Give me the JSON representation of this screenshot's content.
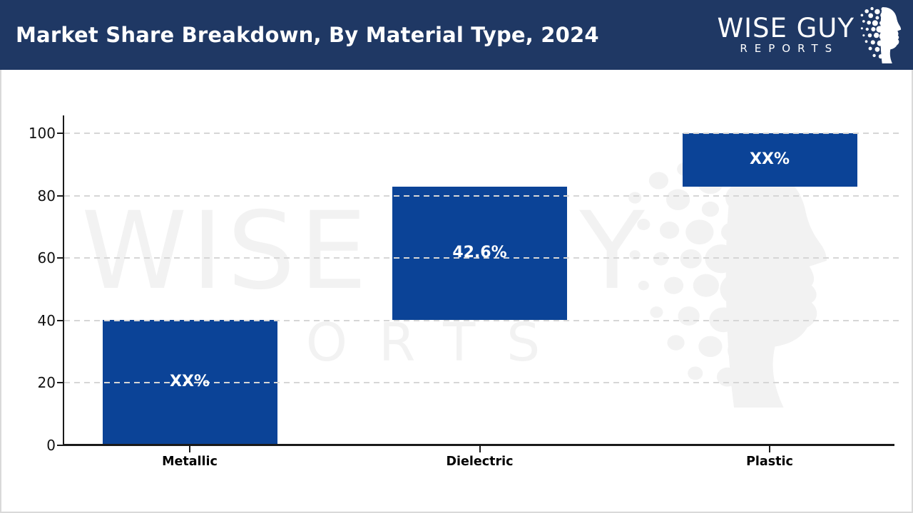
{
  "header": {
    "title": "Market Share Breakdown, By Material Type, 2024",
    "logo": {
      "line1": "WISE GUY",
      "line2": "REPORTS"
    }
  },
  "watermark": {
    "line1": "WISE GUY",
    "line2": "REPORTS"
  },
  "colors": {
    "header_bg": "#1F3864",
    "bar": "#0B4397",
    "bar_label": "#FFFFFF",
    "watermark": "#F2F2F2",
    "grid": "#D6D6D6",
    "axis": "#1A1A1A",
    "page_border": "#D9D9D9",
    "title_text": "#FFFFFF",
    "tick_text": "#111111"
  },
  "chart_data": {
    "type": "bar",
    "subtype": "waterfall-stacked",
    "title": "Market Share Breakdown, By Material Type, 2024",
    "categories": [
      "Metallic",
      "Dielectric",
      "Plastic"
    ],
    "segments": [
      {
        "category": "Metallic",
        "start": 0,
        "end": 40.2,
        "label": "XX%"
      },
      {
        "category": "Dielectric",
        "start": 40.2,
        "end": 82.8,
        "label": "42.6%"
      },
      {
        "category": "Plastic",
        "start": 82.8,
        "end": 100,
        "label": "XX%"
      }
    ],
    "xlabel": "",
    "ylabel": "",
    "ylim": [
      0,
      100
    ],
    "yticks": [
      0,
      20,
      40,
      60,
      80,
      100
    ],
    "grid": "horizontal-dashed",
    "legend": "none",
    "bar_color": "#0B4397",
    "bar_label_color": "#FFFFFF"
  }
}
